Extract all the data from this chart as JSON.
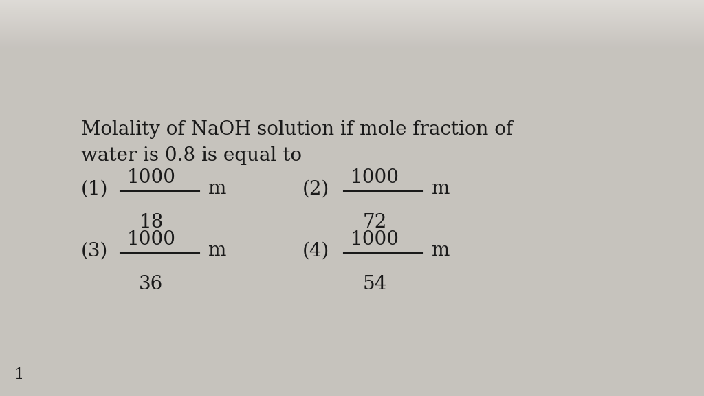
{
  "bg_color": "#c8c4bc",
  "bg_top_color": "#d8d5cf",
  "bg_center_color": "#c5c1b9",
  "text_color": "#1a1a1a",
  "title_line1": "Molality of NaOH solution if mole fraction of",
  "title_line2": "water is 0.8 is equal to",
  "options": [
    {
      "label": "(1)",
      "numerator": "1000",
      "denominator": "18",
      "unit": "m"
    },
    {
      "label": "(2)",
      "numerator": "1000",
      "denominator": "72",
      "unit": "m"
    },
    {
      "label": "(3)",
      "numerator": "1000",
      "denominator": "36",
      "unit": "m"
    },
    {
      "label": "(4)",
      "numerator": "1000",
      "denominator": "54",
      "unit": "m"
    }
  ],
  "footer": "1",
  "title_fontsize": 20,
  "option_fontsize": 20,
  "label_fontsize": 20
}
